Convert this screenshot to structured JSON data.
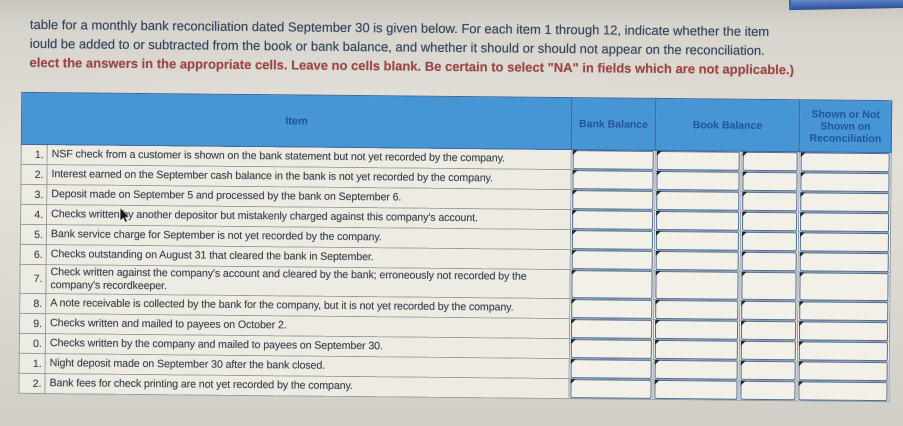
{
  "instructions": {
    "line1": "table for a monthly bank reconciliation dated September 30 is given below. For each item 1 through 12, indicate whether the item",
    "line2": "iould be added to or subtracted from the book or bank balance, and whether it should or should not appear on the reconciliation.",
    "line3": "elect the answers in the appropriate cells. Leave no cells blank. Be certain to select \"NA\" in fields which are not applicable.)"
  },
  "table": {
    "headers": {
      "item": "Item",
      "bank": "Bank Balance",
      "book": "Book Balance",
      "shown": "Shown or Not Shown on Reconciliation"
    },
    "rows": [
      {
        "num": "1.",
        "text": "NSF check from a customer is shown on the bank statement but not yet recorded by the company."
      },
      {
        "num": "2.",
        "text": "Interest earned on the September cash balance in the bank is not yet recorded by the company."
      },
      {
        "num": "3.",
        "text": "Deposit made on September 5 and processed by the bank on September 6."
      },
      {
        "num": "4.",
        "text": "Checks written by another depositor but mistakenly charged against this company's account.",
        "cursor": true
      },
      {
        "num": "5.",
        "text": "Bank service charge for September is not yet recorded by the company."
      },
      {
        "num": "6.",
        "text": "Checks outstanding on August 31 that cleared the bank in September."
      },
      {
        "num": "7.",
        "text": "Check written against the company's account and cleared by the bank; erroneously not recorded by the company's recordkeeper."
      },
      {
        "num": "8.",
        "text": "A note receivable is collected by the bank for the company, but it is not yet recorded by the company."
      },
      {
        "num": "9.",
        "text": "Checks written and mailed to payees on October 2."
      },
      {
        "num": "0.",
        "text": "Checks written by the company and mailed to payees on September 30."
      },
      {
        "num": "1.",
        "text": "Night deposit made on September 30 after the bank closed."
      },
      {
        "num": "2.",
        "text": "Bank fees for check printing are not yet recorded by the company."
      }
    ],
    "dropdown_cells_per_row": 4
  },
  "colors": {
    "header_blue": "#4695d5",
    "header_text_blue": "#24539b",
    "emphasis_red": "#9d4545",
    "instruction_blue": "#35455d",
    "cell_border_blue": "#4e6f9d",
    "table_cream": "#efece3",
    "page_background": "#d7d4cd",
    "top_right_fragment_blue": "#4a70b6"
  }
}
